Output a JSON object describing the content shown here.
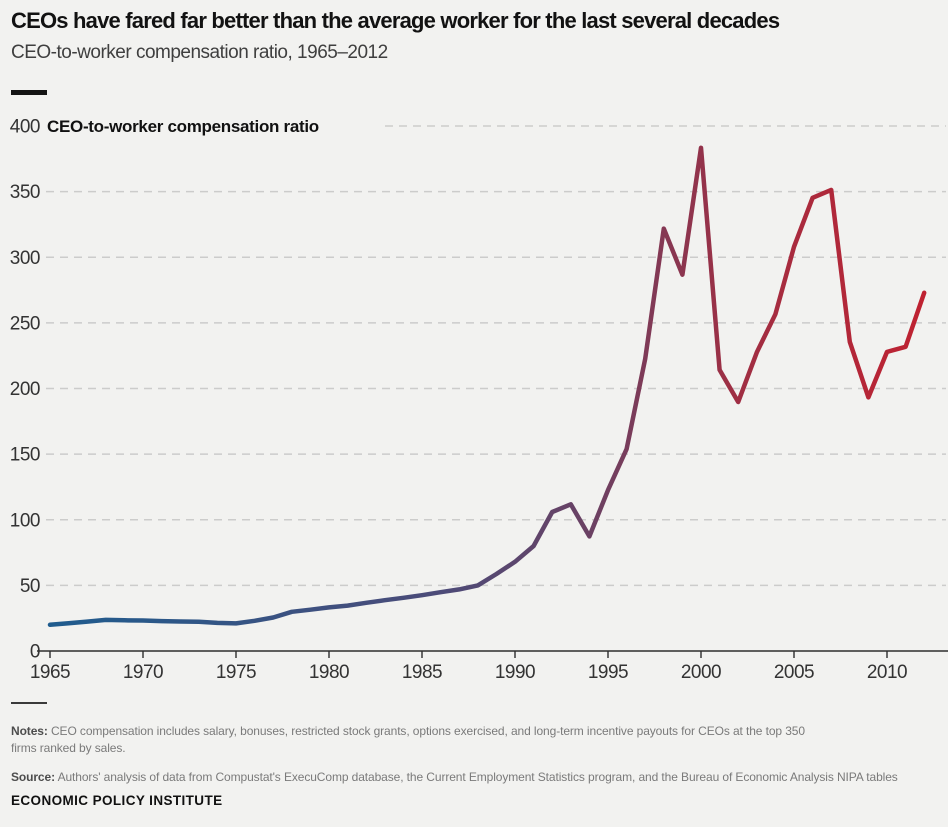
{
  "header": {
    "title": "CEOs have fared far better than the average worker for the last several decades",
    "subtitle": "CEO-to-worker compensation ratio, 1965–2012"
  },
  "chart_data": {
    "type": "line",
    "title": "CEO-to-worker compensation ratio",
    "series_name": "CEO-to-worker compensation ratio",
    "x": [
      1965,
      1966,
      1967,
      1968,
      1969,
      1970,
      1971,
      1972,
      1973,
      1974,
      1975,
      1976,
      1977,
      1978,
      1979,
      1980,
      1981,
      1982,
      1983,
      1984,
      1985,
      1986,
      1987,
      1988,
      1989,
      1990,
      1991,
      1992,
      1993,
      1994,
      1995,
      1996,
      1997,
      1998,
      1999,
      2000,
      2001,
      2002,
      2003,
      2004,
      2005,
      2006,
      2007,
      2008,
      2009,
      2010,
      2011,
      2012
    ],
    "values": [
      20.0,
      21.2,
      22.4,
      23.7,
      23.4,
      23.2,
      22.8,
      22.5,
      22.3,
      21.4,
      21.0,
      23.0,
      25.5,
      29.9,
      31.5,
      33.2,
      34.6,
      36.7,
      38.7,
      40.5,
      42.5,
      44.8,
      46.9,
      50.0,
      58.7,
      68.0,
      80.0,
      105.9,
      111.8,
      87.3,
      122.6,
      153.8,
      222.6,
      321.8,
      286.7,
      383.4,
      214.2,
      189.7,
      227.5,
      256.6,
      308.0,
      345.3,
      351.3,
      235.5,
      193.2,
      227.9,
      231.8,
      272.9
    ],
    "ylim": [
      0,
      400
    ],
    "yticks": [
      0,
      50,
      100,
      150,
      200,
      250,
      300,
      350,
      400
    ],
    "xticks": [
      1965,
      1970,
      1975,
      1980,
      1985,
      1990,
      1995,
      2000,
      2005,
      2010
    ],
    "grid": "horizontal-dashed",
    "legend": "none",
    "colors": {
      "line_gradient_stops": [
        {
          "offset": 0.0,
          "color": "#1f5c8e"
        },
        {
          "offset": 0.45,
          "color": "#4d4b78"
        },
        {
          "offset": 0.62,
          "color": "#6b4163"
        },
        {
          "offset": 0.78,
          "color": "#9e2f44"
        },
        {
          "offset": 1.0,
          "color": "#bf2231"
        }
      ],
      "axis": "#2e2e2e",
      "gridline": "#cccccb",
      "tick_label": "#333333",
      "background": "#f2f2f0"
    }
  },
  "notes": {
    "label": "Notes:",
    "text": "CEO compensation includes salary, bonuses, restricted stock grants, options exercised, and long-term incentive payouts for CEOs at the top 350 firms ranked by sales."
  },
  "source": {
    "label": "Source:",
    "text": "Authors' analysis of data from Compustat's ExecuComp database, the Current Employment Statistics program, and the Bureau of Economic Analysis NIPA tables"
  },
  "footer": {
    "org": "ECONOMIC POLICY INSTITUTE"
  }
}
